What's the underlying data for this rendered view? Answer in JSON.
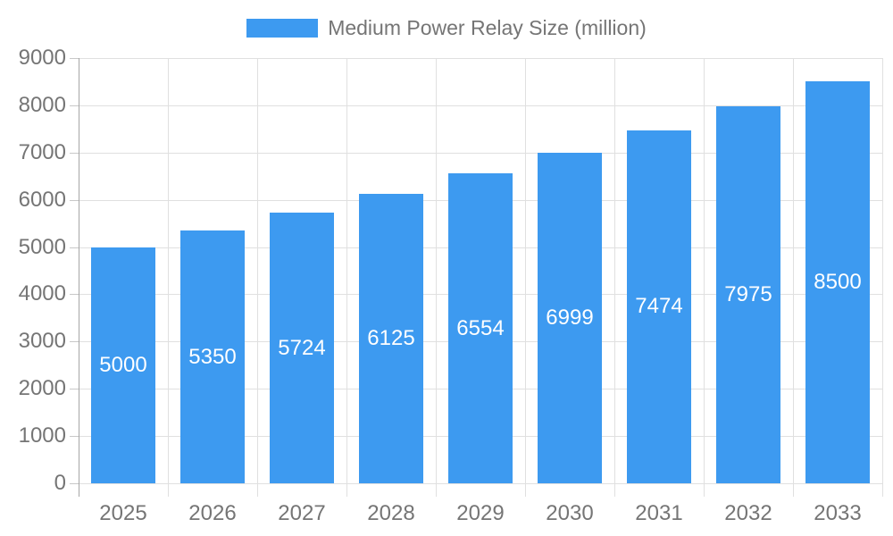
{
  "legend": {
    "label": "Medium Power Relay Size (million)"
  },
  "colors": {
    "background": "#ffffff",
    "bar": "#3d9af0",
    "legend_text": "#757575",
    "axis_text": "#757575",
    "grid": "#e0e0e0",
    "axis_line": "#a6a6a6",
    "tick": "#c8c8c8",
    "value_text": "#ffffff"
  },
  "chart_data": {
    "type": "bar",
    "title": "",
    "categories": [
      "2025",
      "2026",
      "2027",
      "2028",
      "2029",
      "2030",
      "2031",
      "2032",
      "2033"
    ],
    "series": [
      {
        "name": "Medium Power Relay Size (million)",
        "values": [
          5000,
          5350,
          5724,
          6125,
          6554,
          6999,
          7474,
          7975,
          8500
        ]
      }
    ],
    "xlabel": "",
    "ylabel": "",
    "ylim": [
      0,
      9000
    ],
    "y_ticks": [
      0,
      1000,
      2000,
      3000,
      4000,
      5000,
      6000,
      7000,
      8000,
      9000
    ],
    "grid": true,
    "legend_position": "top",
    "value_label_position": "inside-center"
  }
}
